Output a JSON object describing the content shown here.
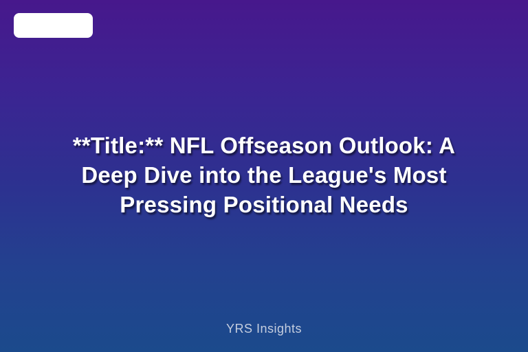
{
  "page": {
    "background": {
      "gradient_top": "#47188c",
      "gradient_middle": "#2d3190",
      "gradient_bottom": "#1b4a8c"
    }
  },
  "badge": {
    "color": "#ffffff"
  },
  "title": {
    "full": "**Title:** NFL Offseason Outlook: A Deep Dive into the League's Most Pressing Positional Needs",
    "lines": [
      "**Title:** NFL Offseason Outlook: A",
      "Deep Dive into the League's Most",
      "Pressing Positional Needs"
    ],
    "color": "#ffffff"
  },
  "footer": {
    "brand": "YRS Insights",
    "color": "#c5cedf"
  }
}
